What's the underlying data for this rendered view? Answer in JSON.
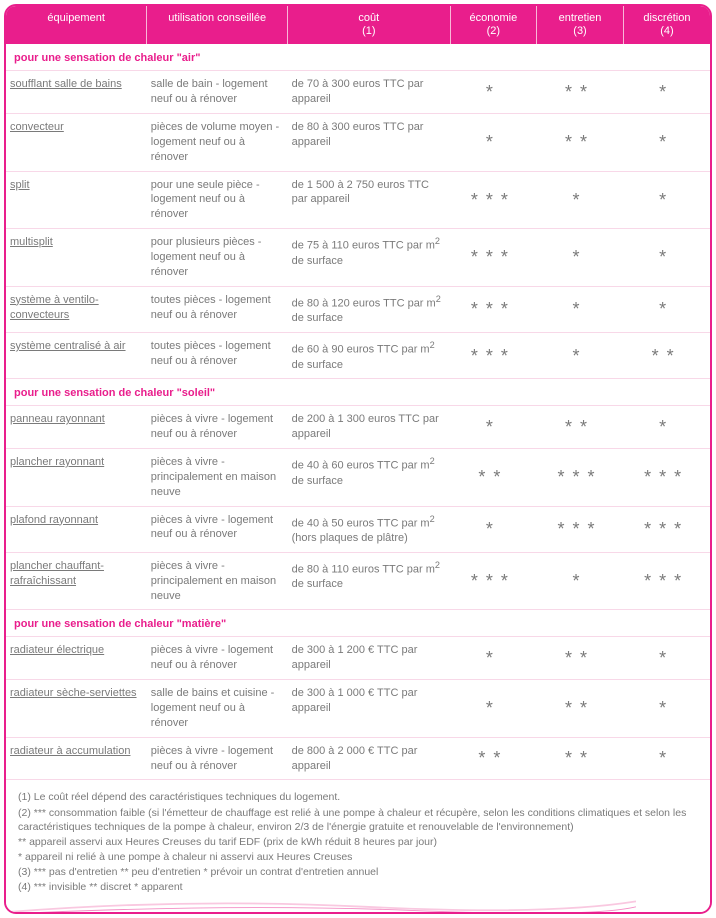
{
  "columns": {
    "equipment": "équipement",
    "usage": "utilisation conseillée",
    "cost": "coût",
    "cost_note": "(1)",
    "economy": "économie",
    "economy_note": "(2)",
    "maintenance": "entretien",
    "maintenance_note": "(3)",
    "discretion": "discrétion",
    "discretion_note": "(4)"
  },
  "sections": [
    {
      "title": "pour une sensation de chaleur \"air\"",
      "rows": [
        {
          "equip": "soufflant salle de bains",
          "usage": "salle de bain - logement neuf ou à rénover",
          "cost": "de 70 à 300 euros TTC par appareil",
          "eco": 1,
          "maint": 2,
          "disc": 1
        },
        {
          "equip": "convecteur",
          "usage": "pièces de volume moyen - logement neuf ou à rénover",
          "cost": "de 80 à 300 euros TTC par appareil",
          "eco": 1,
          "maint": 2,
          "disc": 1
        },
        {
          "equip": "split",
          "usage": "pour une seule pièce - logement neuf ou à rénover",
          "cost": "de 1 500 à 2 750 euros TTC par appareil",
          "eco": 3,
          "maint": 1,
          "disc": 1
        },
        {
          "equip": "multisplit",
          "usage": "pour plusieurs pièces - logement neuf ou à rénover",
          "cost": "de 75 à 110 euros TTC par m² de surface",
          "eco": 3,
          "maint": 1,
          "disc": 1
        },
        {
          "equip": "système à ventilo-convecteurs",
          "usage": "toutes pièces - logement neuf ou à rénover",
          "cost": "de 80 à 120 euros TTC par m² de surface",
          "eco": 3,
          "maint": 1,
          "disc": 1
        },
        {
          "equip": "système centralisé à air",
          "usage": "toutes pièces - logement neuf ou à rénover",
          "cost": "de 60 à 90 euros TTC par m² de surface",
          "eco": 3,
          "maint": 1,
          "disc": 2
        }
      ]
    },
    {
      "title": "pour une sensation de chaleur \"soleil\"",
      "rows": [
        {
          "equip": "panneau rayonnant",
          "usage": "pièces à vivre - logement neuf ou à rénover",
          "cost": "de 200 à 1 300 euros TTC par appareil",
          "eco": 1,
          "maint": 2,
          "disc": 1
        },
        {
          "equip": "plancher rayonnant",
          "usage": "pièces à vivre - principalement en maison neuve",
          "cost": "de 40 à 60 euros TTC par m² de surface",
          "eco": 2,
          "maint": 3,
          "disc": 3
        },
        {
          "equip": "plafond rayonnant",
          "usage": "pièces à vivre - logement neuf ou à rénover",
          "cost": "de 40 à 50 euros TTC par m² (hors plaques de plâtre)",
          "eco": 1,
          "maint": 3,
          "disc": 3
        },
        {
          "equip": "plancher chauffant-rafraîchissant",
          "usage": "pièces à vivre - principalement en maison neuve",
          "cost": "de 80 à 110 euros TTC par m² de surface",
          "eco": 3,
          "maint": 1,
          "disc": 3
        }
      ]
    },
    {
      "title": "pour une sensation de chaleur \"matière\"",
      "rows": [
        {
          "equip": "radiateur électrique",
          "usage": "pièces à vivre - logement neuf ou à rénover",
          "cost": "de 300 à 1 200 € TTC par appareil",
          "eco": 1,
          "maint": 2,
          "disc": 1
        },
        {
          "equip": "radiateur sèche-serviettes",
          "usage": "salle de bains et cuisine - logement neuf ou à rénover",
          "cost": "de 300 à 1 000 € TTC par appareil",
          "eco": 1,
          "maint": 2,
          "disc": 1
        },
        {
          "equip": "radiateur à accumulation",
          "usage": "pièces à vivre - logement neuf ou à rénover",
          "cost": "de 800 à 2 000 € TTC par appareil",
          "eco": 2,
          "maint": 2,
          "disc": 1
        }
      ]
    }
  ],
  "footnotes": [
    "(1) Le coût réel dépend des caractéristiques techniques du logement.",
    "(2) *** consommation faible (si l'émetteur de chauffage est relié à une pompe à chaleur et récupère, selon les conditions climatiques et selon les caractéristiques techniques de la pompe à chaleur, environ 2/3 de l'énergie gratuite et renouvelable de l'environnement)",
    "** appareil asservi aux Heures Creuses du tarif EDF (prix de kWh réduit 8 heures par jour)",
    "* appareil ni relié à une pompe à chaleur ni asservi aux Heures Creuses",
    "(3) *** pas d'entretien ** peu d'entretien * prévoir un contrat d'entretien annuel",
    "(4) *** invisible ** discret * apparent"
  ],
  "colors": {
    "primary": "#e91e8c",
    "row_border": "#f8d8e8",
    "text_muted": "#7a7a7a"
  }
}
